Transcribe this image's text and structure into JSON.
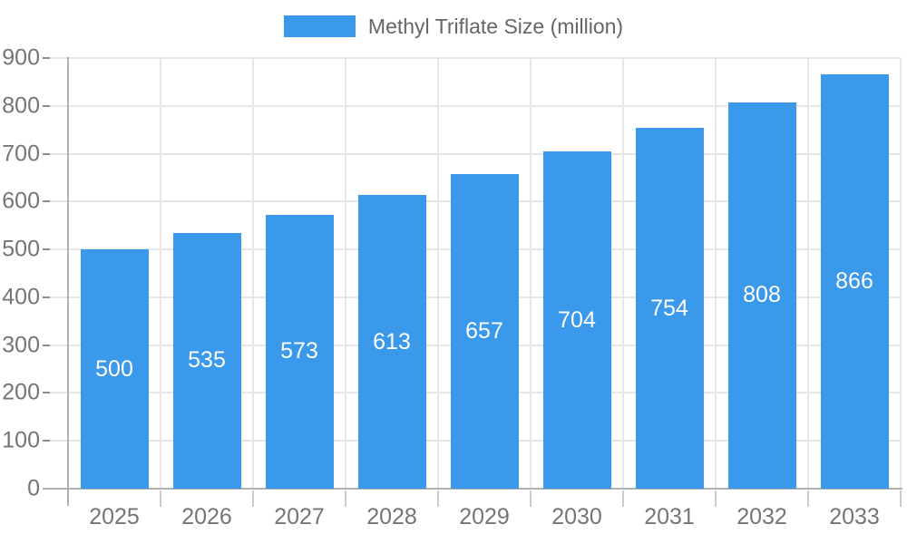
{
  "chart_data": {
    "type": "bar",
    "title": "",
    "series_name": "Methyl Triflate Size (million)",
    "categories": [
      "2025",
      "2026",
      "2027",
      "2028",
      "2029",
      "2030",
      "2031",
      "2032",
      "2033"
    ],
    "values": [
      500,
      535,
      573,
      613,
      657,
      704,
      754,
      808,
      866
    ],
    "xlabel": "",
    "ylabel": "",
    "ylim": [
      0,
      900
    ],
    "ytick_step": 100,
    "grid": true,
    "legend_position": "top",
    "colors": {
      "bar": "#3b99ec",
      "bar_label": "#ffffff",
      "axis_text": "#757575",
      "legend_text": "#666666",
      "gridline": "#e6e6e6",
      "boundary_tick": "#cccccc",
      "axis_line": "#b0b0b0",
      "y_tick": "#8c8c8c",
      "background": "#ffffff"
    }
  }
}
